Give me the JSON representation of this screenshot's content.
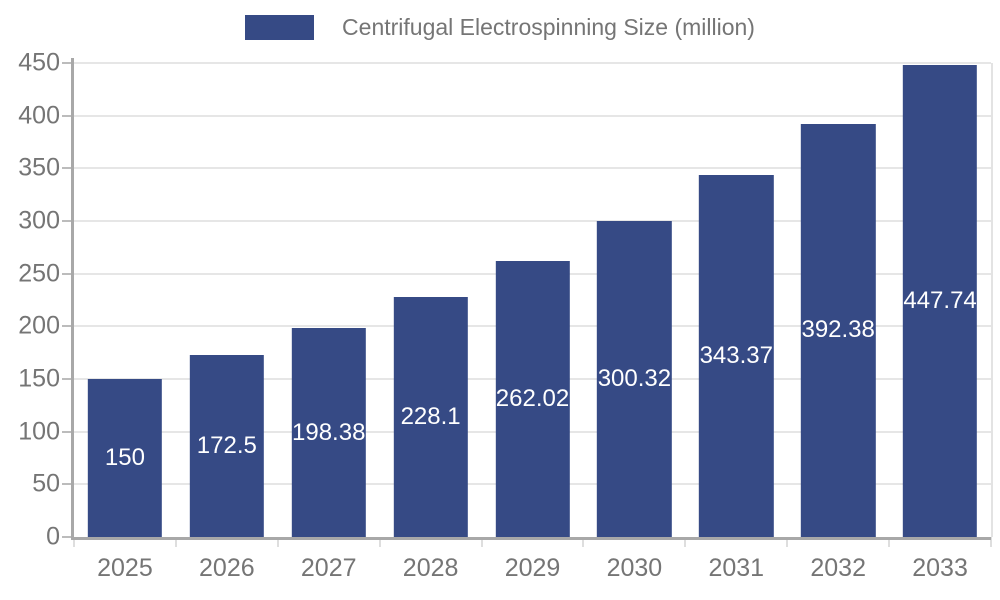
{
  "legend": {
    "label": "Centrifugal Electrospinning Size (million)",
    "swatch_color": "#364A85"
  },
  "chart_data": {
    "type": "bar",
    "title": "Centrifugal Electrospinning Size (million)",
    "categories": [
      "2025",
      "2026",
      "2027",
      "2028",
      "2029",
      "2030",
      "2031",
      "2032",
      "2033"
    ],
    "values": [
      150,
      172.5,
      198.38,
      228.1,
      262.02,
      300.32,
      343.37,
      392.38,
      447.74
    ],
    "bar_labels": [
      "150",
      "172.5",
      "198.38",
      "228.1",
      "262.02",
      "300.32",
      "343.37",
      "392.38",
      "447.74"
    ],
    "xlabel": "",
    "ylabel": "",
    "ylim": [
      0,
      450
    ],
    "yticks": [
      0,
      50,
      100,
      150,
      200,
      250,
      300,
      350,
      400,
      450
    ],
    "grid": true,
    "legend_position": "top-center",
    "colors": {
      "bar": "#364A85",
      "value_label": "#ffffff",
      "axis_text": "#757575",
      "gridline": "#e6e6e6",
      "axis_line": "#a8a8a8"
    }
  }
}
